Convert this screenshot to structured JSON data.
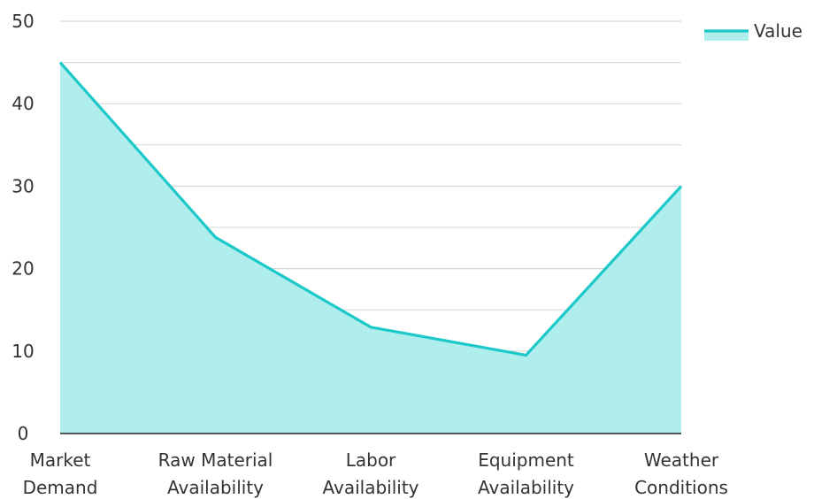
{
  "chart_data": {
    "type": "area",
    "categories": [
      [
        "Market",
        "Demand"
      ],
      [
        "Raw Material",
        "Availability"
      ],
      [
        "Labor",
        "Availability"
      ],
      [
        "Equipment",
        "Availability"
      ],
      [
        "Weather",
        "Conditions"
      ]
    ],
    "series": [
      {
        "name": "Value",
        "values": [
          45,
          23.8,
          12.9,
          9.5,
          30
        ]
      }
    ],
    "yticks": [
      0,
      10,
      20,
      30,
      40,
      50
    ],
    "ylim": [
      0,
      50
    ],
    "title": "",
    "xlabel": "",
    "ylabel": "",
    "grid": true,
    "legend_position": "top-right",
    "colors": {
      "line": "#1cc8c8",
      "fill": "#b0eeee",
      "grid": "#d6d6d6",
      "axis": "#222222"
    }
  }
}
